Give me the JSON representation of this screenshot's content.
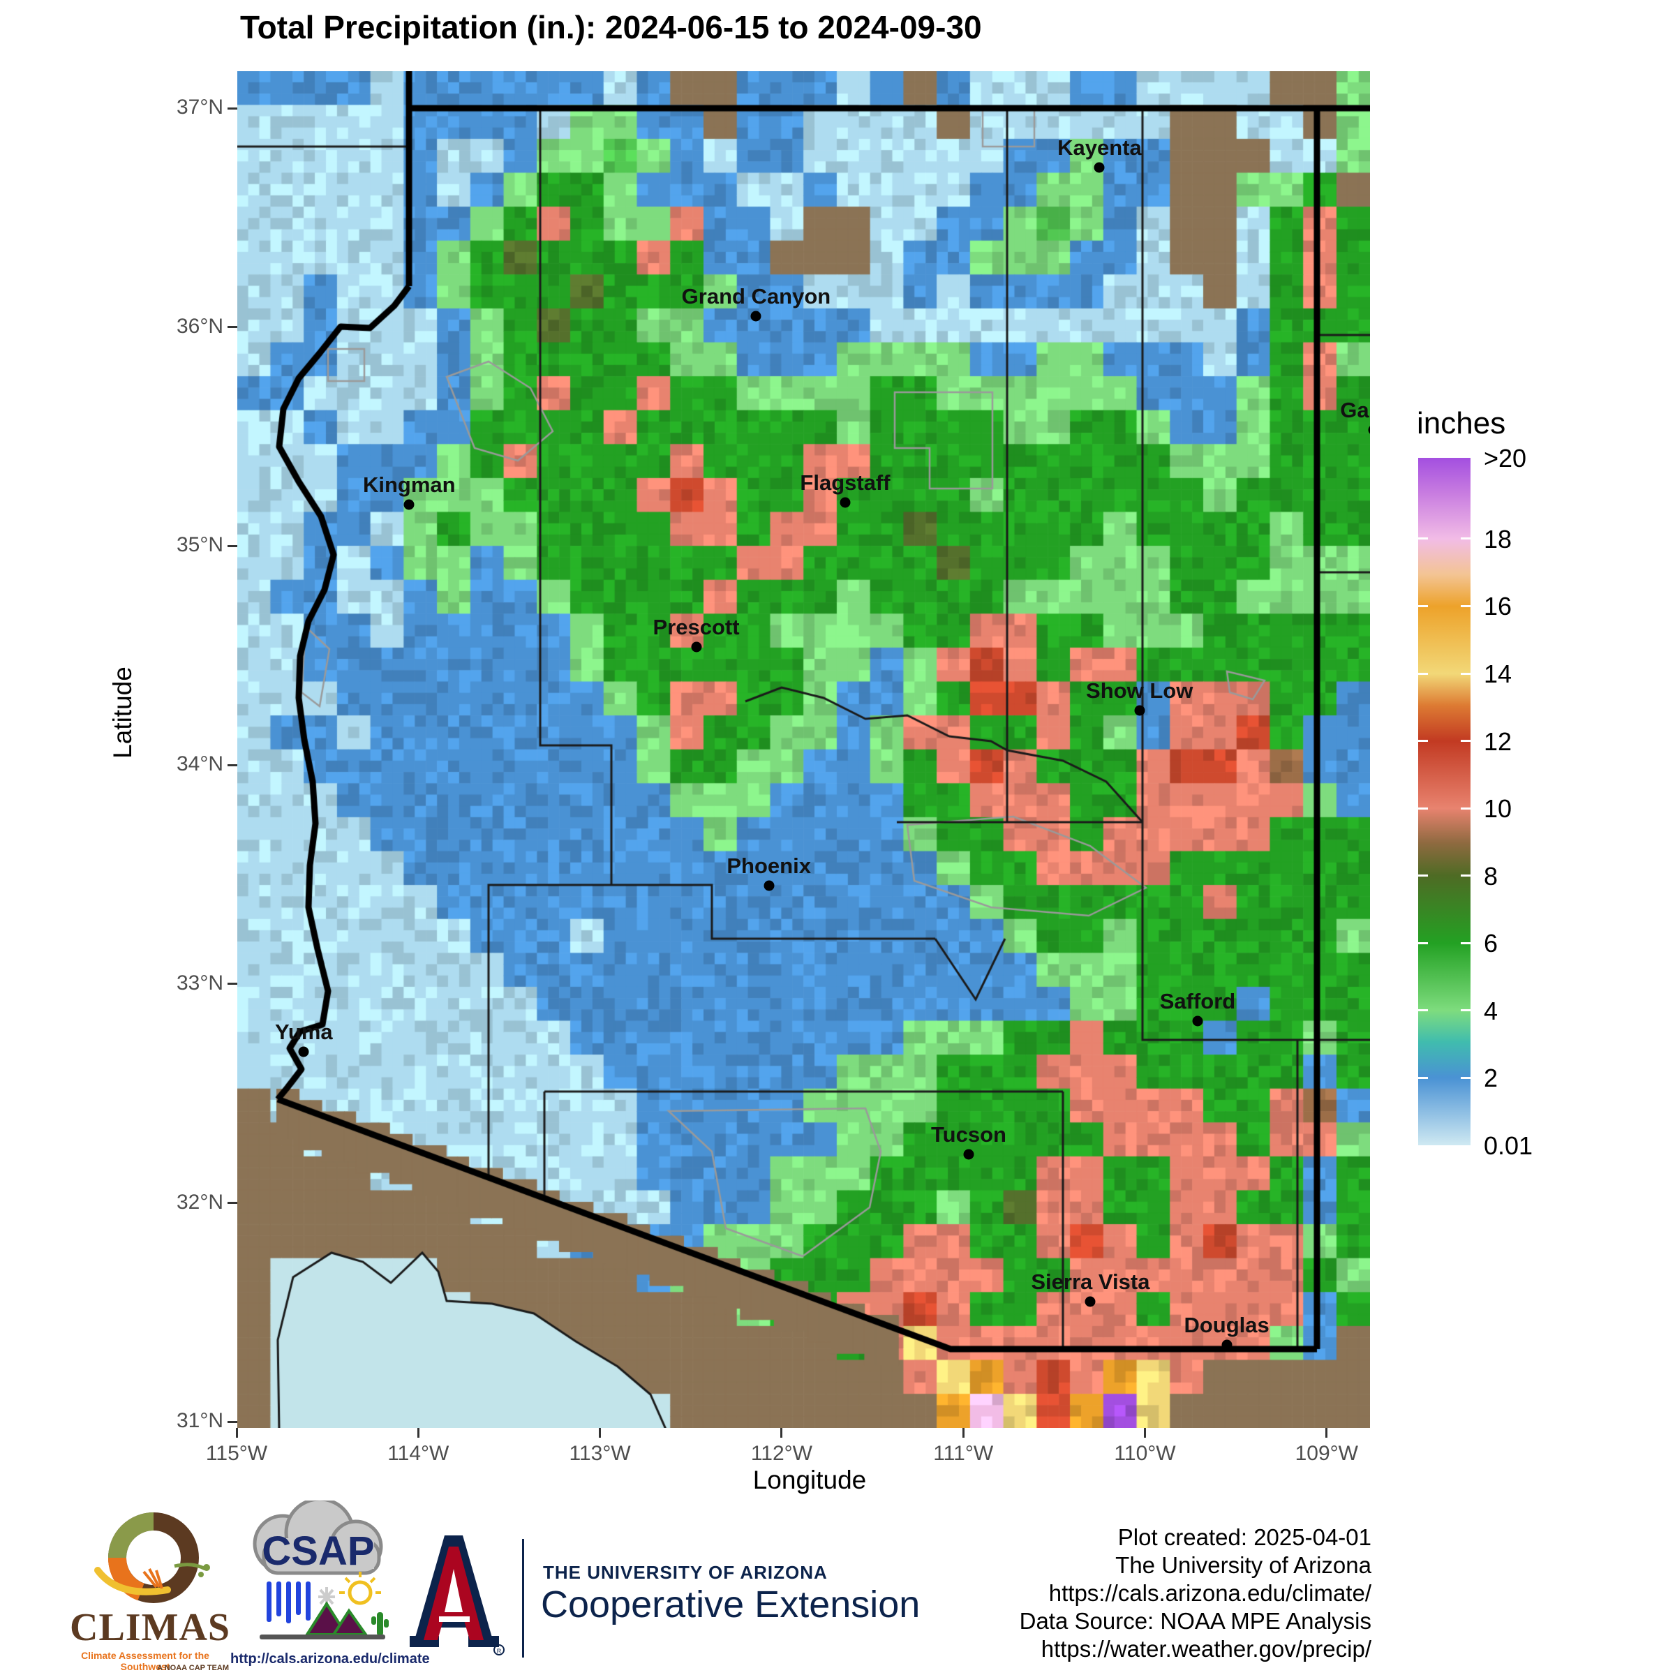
{
  "title": "Total Precipitation (in.): 2024-06-15 to 2024-09-30",
  "axes": {
    "x_label": "Longitude",
    "y_label": "Latitude",
    "x_ticks": [
      {
        "label": "115°W",
        "lon": 115
      },
      {
        "label": "114°W",
        "lon": 114
      },
      {
        "label": "113°W",
        "lon": 113
      },
      {
        "label": "112°W",
        "lon": 112
      },
      {
        "label": "111°W",
        "lon": 111
      },
      {
        "label": "110°W",
        "lon": 110
      },
      {
        "label": "109°W",
        "lon": 109
      }
    ],
    "y_ticks": [
      {
        "label": "37°N",
        "lat": 37
      },
      {
        "label": "36°N",
        "lat": 36
      },
      {
        "label": "35°N",
        "lat": 35
      },
      {
        "label": "34°N",
        "lat": 34
      },
      {
        "label": "33°N",
        "lat": 33
      },
      {
        "label": "32°N",
        "lat": 32
      },
      {
        "label": "31°N",
        "lat": 31
      }
    ]
  },
  "legend": {
    "title": "inches",
    "entries": [
      {
        "label": ">20",
        "value": 20.4
      },
      {
        "label": "18",
        "value": 18
      },
      {
        "label": "16",
        "value": 16
      },
      {
        "label": "14",
        "value": 14
      },
      {
        "label": "12",
        "value": 12
      },
      {
        "label": "10",
        "value": 10
      },
      {
        "label": "8",
        "value": 8
      },
      {
        "label": "6",
        "value": 6
      },
      {
        "label": "4",
        "value": 4
      },
      {
        "label": "2",
        "value": 2
      },
      {
        "label": "0.01",
        "value": 0
      }
    ],
    "tick_values": [
      18,
      16,
      14,
      12,
      10,
      8,
      6,
      4,
      2
    ]
  },
  "footer": {
    "lines": [
      "Plot created: 2025-04-01",
      "The University of Arizona",
      "https://cals.arizona.edu/climate/",
      "Data Source: NOAA MPE Analysis",
      "https://water.weather.gov/precip/"
    ]
  },
  "logos": {
    "climas": {
      "name": "CLIMAS",
      "tagline": "Climate Assessment for the Southwest",
      "subtagline": "A NOAA CAP TEAM"
    },
    "csap": {
      "name": "CSAP",
      "url": "http://cals.arizona.edu/climate"
    },
    "ua": {
      "line1": "THE UNIVERSITY OF ARIZONA",
      "line2": "Cooperative Extension"
    }
  },
  "chart_data": {
    "type": "heatmap",
    "title": "Total Precipitation (in.): 2024-06-15 to 2024-09-30",
    "xlabel": "Longitude",
    "ylabel": "Latitude",
    "xlim_deg_west": [
      115.02,
      108.72
    ],
    "ylim_deg_north": [
      30.97,
      37.17
    ],
    "units": "inches",
    "legend_range": [
      0.01,
      20
    ],
    "cities": [
      {
        "name": "Kayenta",
        "lon": 110.25,
        "lat": 36.73
      },
      {
        "name": "Grand Canyon",
        "lon": 112.14,
        "lat": 36.05
      },
      {
        "name": "Kingman",
        "lon": 114.05,
        "lat": 35.19
      },
      {
        "name": "Flagstaff",
        "lon": 111.65,
        "lat": 35.2
      },
      {
        "name": "Prescott",
        "lon": 112.47,
        "lat": 34.54
      },
      {
        "name": "Show Low",
        "lon": 110.03,
        "lat": 34.25
      },
      {
        "name": "Phoenix",
        "lon": 112.07,
        "lat": 33.45
      },
      {
        "name": "Yuma",
        "lon": 114.63,
        "lat": 32.69
      },
      {
        "name": "Safford",
        "lon": 109.71,
        "lat": 32.83
      },
      {
        "name": "Tucson",
        "lon": 110.97,
        "lat": 32.22
      },
      {
        "name": "Sierra Vista",
        "lon": 110.3,
        "lat": 31.55
      },
      {
        "name": "Douglas",
        "lon": 109.55,
        "lat": 31.35
      },
      {
        "name": "Gallup",
        "lon": 108.74,
        "lat": 35.53
      }
    ],
    "grid": {
      "cols": 34,
      "rows": 40,
      "encoding_inches": {
        ".": "no data",
        "s": "sea",
        "1": 1,
        "2": 2,
        "3": 3,
        "4": 4,
        "5": 5,
        "6": 6,
        "7": 7,
        "8": 8,
        "9": 9,
        "A": 10,
        "B": 12,
        "C": 13,
        "D": 14,
        "E": 16,
        "F": 18,
        "G": 20
      },
      "bucket_colors": {
        ".": "#8b7355",
        "s": "#c2e4ea",
        "1": "#aedcf0",
        "2": "#4a92d4",
        "3": "#40bcae",
        "4": "#7edc7e",
        "5": "#52c852",
        "6": "#23a123",
        "7": "#187818",
        "8": "#55702c",
        "9": "#9c6e48",
        "A": "#e8836f",
        "B": "#cf4a2e",
        "C": "#b03020",
        "D": "#f2d878",
        "E": "#eda22a",
        "F": "#f2bce6",
        "G": "#a34fe0"
      },
      "rows_data": [
        "2222122222212..22212.2111221111..4",
        "11111222214422.221111.111111..11.4",
        "1111121124454212211111122422...114",
        "111112124664222112111122442 2..446",
        "111112246A644A221..112245421..16A6",
        "111112468666A622...122444221..16A6",
        "11211246668666422111212222111.16A6",
        "112111246866442222211111111111 2666",
        "1221112466666442224444224422 2126A4",
        "221111246A66A66444466444444222 46A6",
        "11211226666A666666466664466422 4666",
        "11122246A6666A666AA666666666444666",
        "111224446666ABA66A6666466666646666",
        "1122146446666AA6AA668666664666 6466",
        "112124424666666AA66668666444666444",
        "12211242246666A666466664444466 4444",
        "1122122222466A66444466AA664446 6666",
        "112222222246666664424ABA6AA6666666",
        "1112222222246AA6642246BBA662AAA662",
        "1221222222224A664424AA66A642AAB622",
        "112222222222466442246ABA666ABBA922",
        "111222222222244422 2266AAA66AAAAA42",
        "11112222222222422222466AA6AAAAA666",
        "111112222222222222222466AAAA66 6666",
        "1111112222222222222222 4666666A6666",
        "111111122212222222222224664666 6664",
        "11111111222222222222 2222444666 6666",
        "111111111222222222222222244666 2666",
        "1111111111222222222244466A66626646",
        "1111111111122222224446 66AAA6666626",
        ".111111111112222244446666AAAA66A92",
        "..111111111122222244666666AAAA6AA4",
        "....111111112222444 66666AA66AAA626",
        ".......111111222446664 68AA66AA6626",
        ".........12222444666AA66ABA6ABAA46",
        ".sssss......2444666AAAA66AAAAAAA64",
        ".ssssss........466AABA66AAA6AAAA26",
        ".sssssss..........6ADAAAAAAAAAA42.",
        ".ssssssss...........ADEABAEDA.....",
        ".ssssssssssss........EFDBEGD......"
      ],
      "note": "Each char is one coarse cell west-to-east, rows north-to-south, covering the plotted extent."
    },
    "legend_gradient_stops_bottom_to_top": [
      [
        0,
        "#cfe9f2"
      ],
      [
        9.8,
        "#4a92d4"
      ],
      [
        15,
        "#40bcae"
      ],
      [
        19.6,
        "#7edc7e"
      ],
      [
        29.4,
        "#23a123"
      ],
      [
        39.2,
        "#4e6b24"
      ],
      [
        44,
        "#8f6a40"
      ],
      [
        49,
        "#e8836f"
      ],
      [
        58.8,
        "#c23a22"
      ],
      [
        64,
        "#dd7b33"
      ],
      [
        68.6,
        "#f2d878"
      ],
      [
        78.4,
        "#eda22a"
      ],
      [
        83,
        "#f3c493"
      ],
      [
        88.2,
        "#f2bce6"
      ],
      [
        95,
        "#c77be0"
      ],
      [
        100,
        "#a34fe0"
      ]
    ],
    "no_data_color": "#8b7355",
    "sea_color": "#c2e4ea"
  }
}
